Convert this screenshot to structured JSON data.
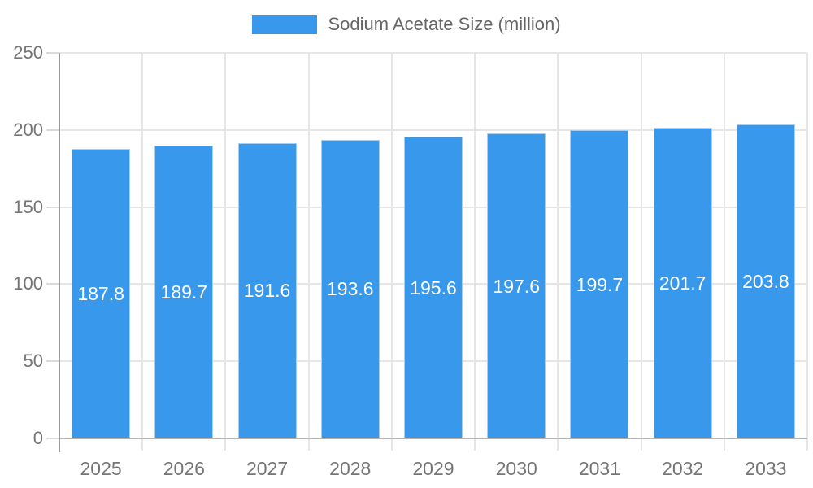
{
  "legend": {
    "label": "Sodium Acetate Size (million)"
  },
  "colors": {
    "bar_fill": "#3898EC",
    "grid": "#E6E6E6",
    "axis_line": "#9E9E9E",
    "x_axis_line": "#B5B5B5",
    "tick": "#DBDBDB",
    "axis_text": "#757575",
    "legend_text": "#666666",
    "value_text": "#FFFFFF"
  },
  "chart_data": {
    "type": "bar",
    "title": "",
    "categories": [
      "2025",
      "2026",
      "2027",
      "2028",
      "2029",
      "2030",
      "2031",
      "2032",
      "2033"
    ],
    "series": [
      {
        "name": "Sodium Acetate Size (million)",
        "values": [
          187.8,
          189.7,
          191.6,
          193.6,
          195.6,
          197.6,
          199.7,
          201.7,
          203.8
        ]
      }
    ],
    "value_labels": [
      "187.8",
      "189.7",
      "191.6",
      "193.6",
      "195.6",
      "197.6",
      "199.7",
      "201.7",
      "203.8"
    ],
    "xlabel": "",
    "ylabel": "",
    "ylim": [
      0,
      250
    ],
    "yticks": [
      0,
      50,
      100,
      150,
      200,
      250
    ],
    "grid": true,
    "legend_position": "top",
    "value_label_position": "inside-center"
  }
}
